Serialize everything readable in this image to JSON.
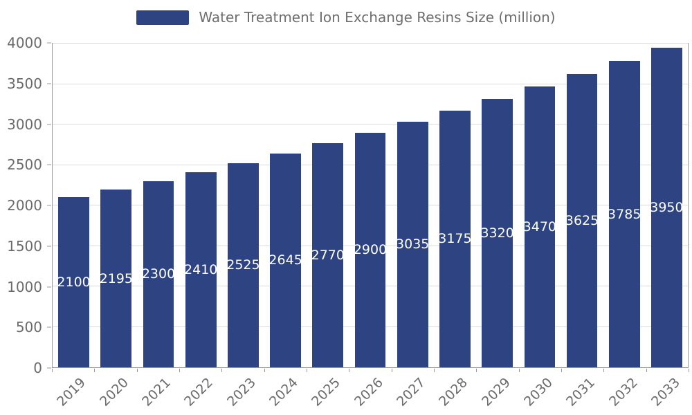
{
  "legend": {
    "items": [
      {
        "label": "Water Treatment Ion Exchange Resins Size (million)",
        "color": "#2e4482"
      }
    ],
    "position": "top"
  },
  "chart_data": {
    "type": "bar",
    "title": "Water Treatment Ion Exchange Resins Size (million)",
    "categories": [
      "2019",
      "2020",
      "2021",
      "2022",
      "2023",
      "2024",
      "2025",
      "2026",
      "2027",
      "2028",
      "2029",
      "2030",
      "2031",
      "2032",
      "2033"
    ],
    "values": [
      2100,
      2195,
      2300,
      2410,
      2525,
      2645,
      2770,
      2900,
      3035,
      3175,
      3320,
      3470,
      3625,
      3785,
      3950
    ],
    "xlabel": "",
    "ylabel": "",
    "ylim": [
      0,
      4000
    ],
    "yticks": [
      0,
      500,
      1000,
      1500,
      2000,
      2500,
      3000,
      3500,
      4000
    ],
    "grid": true,
    "legend_position": "top",
    "bar_color": "#2e4482",
    "value_label_color": "#ffffff",
    "axis_text_color": "#6b6b6b",
    "grid_color": "#dcdcdc",
    "axis_line_color": "#9a9a9a"
  }
}
